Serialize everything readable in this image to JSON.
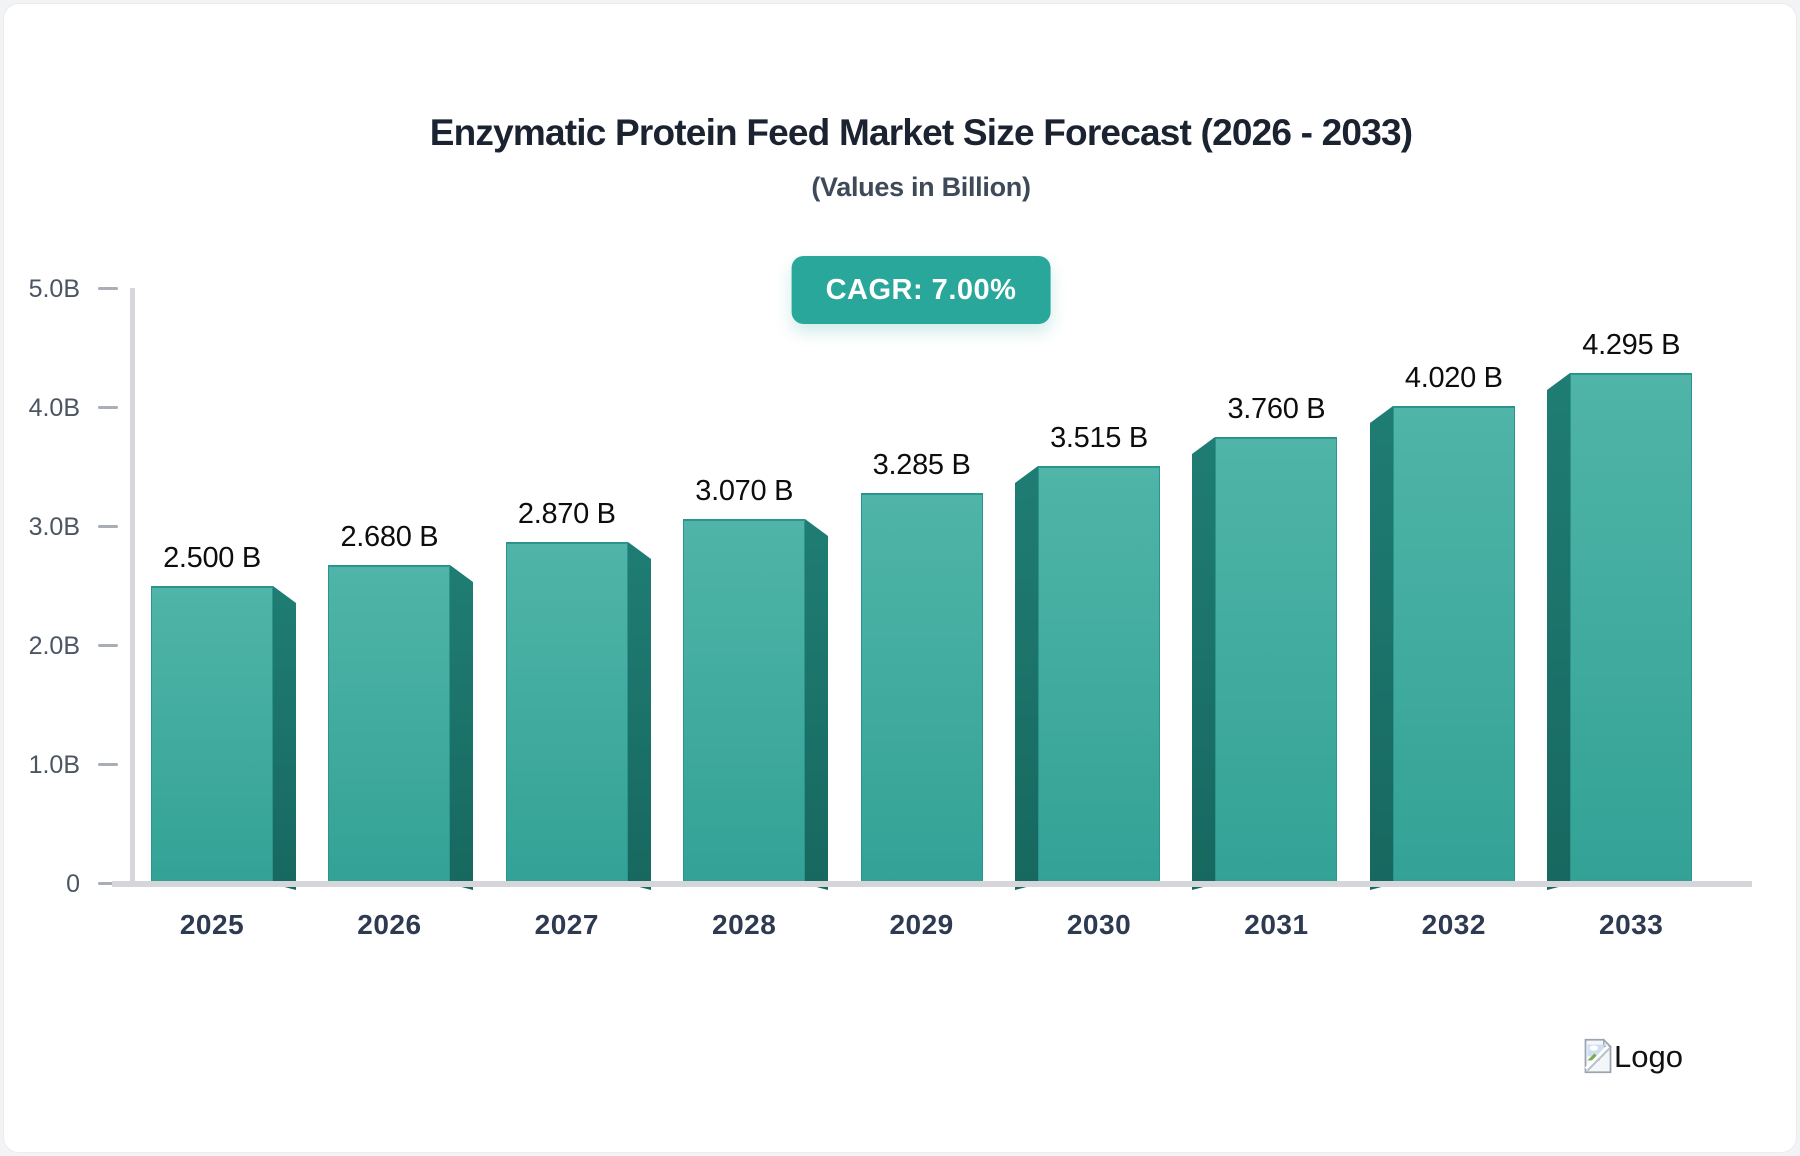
{
  "header": {
    "title": "Enzymatic Protein Feed Market Size Forecast (2026 - 2033)",
    "subtitle": "(Values in Billion)"
  },
  "badge": {
    "label": "CAGR: 7.00%"
  },
  "chart_data": {
    "type": "bar",
    "title": "Enzymatic Protein Feed Market Size Forecast (2026 - 2033)",
    "subtitle": "(Values in Billion)",
    "annotations": [
      "CAGR: 7.00%"
    ],
    "categories": [
      "2025",
      "2026",
      "2027",
      "2028",
      "2029",
      "2030",
      "2031",
      "2032",
      "2033"
    ],
    "values": [
      2.5,
      2.68,
      2.87,
      3.07,
      3.285,
      3.515,
      3.76,
      4.02,
      4.295
    ],
    "value_labels": [
      "2.500 B",
      "2.680 B",
      "2.870 B",
      "3.070 B",
      "3.285 B",
      "3.515 B",
      "3.760 B",
      "4.020 B",
      "4.295 B"
    ],
    "unit": "Billion",
    "xlabel": "",
    "ylabel": "",
    "ylim": [
      0,
      5
    ],
    "yticks": [
      {
        "value": 5,
        "label": "5.0B"
      },
      {
        "value": 4,
        "label": "4.0B"
      },
      {
        "value": 3,
        "label": "3.0B"
      },
      {
        "value": 2,
        "label": "2.0B"
      },
      {
        "value": 1,
        "label": "1.0B"
      },
      {
        "value": 0,
        "label": "0"
      }
    ],
    "grid": false,
    "legend": null,
    "bar_style": "3d-perspective"
  },
  "colors": {
    "bar_face_top": "#50b4a8",
    "bar_face_bottom": "#33a296",
    "bar_face_border": "#2a958c",
    "bar_side_dark": "#1f7d74",
    "bar_side_darker": "#17685f",
    "badge_bg": "#2aa79b",
    "badge_text": "#ffffff",
    "axis_line": "#d5d7dc",
    "baseline": "#d4d6da",
    "tick_dash": "#a9aeb6",
    "tick_label": "#4b5563",
    "year_label": "#2d3a51",
    "value_label": "#0d0d0d",
    "title": "#1b2330",
    "subtitle": "#3f4a59"
  },
  "logo": {
    "alt_text": "Logo"
  }
}
